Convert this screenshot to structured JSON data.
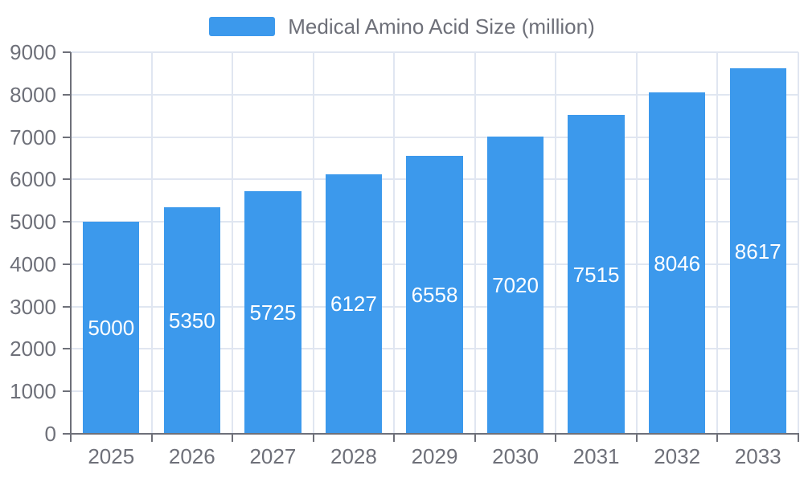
{
  "legend": {
    "label": "Medical Amino Acid Size (million)"
  },
  "colors": {
    "bar": "#3C99EC",
    "axis": "#6E7079",
    "grid": "#E0E6F1",
    "text": "#6E7079",
    "bar_label": "#FFFFFF",
    "background": "#FFFFFF"
  },
  "chart_data": {
    "type": "bar",
    "title": "Medical Amino Acid Size (million)",
    "categories": [
      "2025",
      "2026",
      "2027",
      "2028",
      "2029",
      "2030",
      "2031",
      "2032",
      "2033"
    ],
    "series": [
      {
        "name": "Medical Amino Acid Size (million)",
        "values": [
          5000,
          5350,
          5725,
          6127,
          6558,
          7020,
          7515,
          8046,
          8617
        ]
      }
    ],
    "xlabel": "",
    "ylabel": "",
    "ylim": [
      0,
      9000
    ],
    "ytick_interval": 1000,
    "yticks": [
      0,
      1000,
      2000,
      3000,
      4000,
      5000,
      6000,
      7000,
      8000,
      9000
    ],
    "grid": true,
    "legend_position": "top-center",
    "value_labels": "inside-middle"
  }
}
